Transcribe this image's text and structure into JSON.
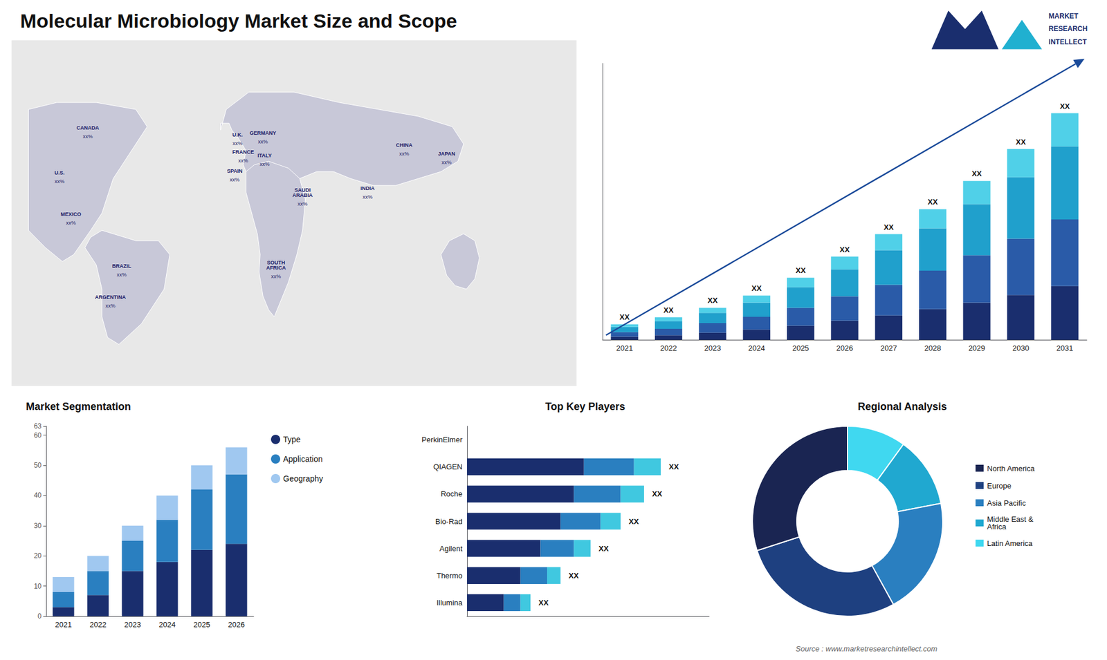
{
  "title": "Molecular Microbiology Market Size and Scope",
  "annotations": [
    "Source : www.marketresearchintellect.com",
    "MARKET",
    "RESEARCH",
    "INTELLECT"
  ],
  "chart_data": [
    {
      "type": "map",
      "categories": [
        "CANADA",
        "U.S.",
        "MEXICO",
        "BRAZIL",
        "ARGENTINA",
        "U.K.",
        "FRANCE",
        "SPAIN",
        "GERMANY",
        "ITALY",
        "SAUDI\nARABIA",
        "SOUTH\nAFRICA",
        "CHINA",
        "INDIA",
        "JAPAN"
      ],
      "annotations": [
        "xx%",
        "xx%",
        "xx%",
        "xx%",
        "xx%",
        "xx%",
        "xx%",
        "xx%",
        "xx%",
        "xx%",
        "xx%",
        "xx%",
        "xx%",
        "xx%",
        "xx%"
      ]
    },
    {
      "type": "bar",
      "stacked": true,
      "categories": [
        "2021",
        "2022",
        "2023",
        "2024",
        "2025",
        "2026",
        "2027",
        "2028",
        "2029",
        "2030",
        "2031"
      ],
      "series": [
        {
          "color": "#1a2e6e",
          "values": [
            2.5,
            3.5,
            5.5,
            8,
            11,
            15,
            19,
            24,
            29,
            35,
            42
          ]
        },
        {
          "color": "#2a5ba8",
          "values": [
            3.5,
            5,
            7.5,
            10,
            14,
            19,
            24,
            30,
            37,
            44,
            52
          ]
        },
        {
          "color": "#20a0cc",
          "values": [
            4,
            6,
            8,
            11,
            16,
            21,
            27,
            33,
            40,
            48,
            57
          ]
        },
        {
          "color": "#50d0e8",
          "values": [
            2,
            3,
            4,
            5.5,
            7.5,
            10,
            12.5,
            15,
            18,
            22,
            26
          ]
        }
      ],
      "annotations": [
        "XX",
        "XX",
        "XX",
        "XX",
        "XX",
        "XX",
        "XX",
        "XX",
        "XX",
        "XX",
        "XX"
      ],
      "ylim": [
        0,
        215.94
      ],
      "tick_labels": "x",
      "grid": false
    },
    {
      "type": "bar",
      "title": "Market Segmentation",
      "stacked": true,
      "categories": [
        "2021",
        "2022",
        "2023",
        "2024",
        "2025",
        "2026"
      ],
      "series": [
        {
          "name": "Type",
          "color": "#1a2e6e",
          "values": [
            3,
            7,
            15,
            18,
            22,
            24
          ]
        },
        {
          "name": "Application",
          "color": "#2a7fc0",
          "values": [
            5,
            8,
            10,
            14,
            20,
            23
          ]
        },
        {
          "name": "Geography",
          "color": "#a0c8f0",
          "values": [
            5,
            5,
            5,
            8,
            8,
            9
          ]
        }
      ],
      "ylim": [
        0,
        63
      ],
      "yticks": [
        0,
        10,
        20,
        30,
        40,
        50,
        60
      ],
      "legend": "right",
      "grid": false
    },
    {
      "type": "bar",
      "title": "Top Key Players",
      "orientation": "horizontal",
      "stacked": true,
      "categories": [
        "PerkinElmer",
        "QIAGEN",
        "Roche",
        "Bio-Rad",
        "Agilent",
        "Thermo",
        "Illumina"
      ],
      "series": [
        {
          "color": "#1a2e6e",
          "values": [
            0,
            35,
            32,
            28,
            22,
            16,
            11
          ]
        },
        {
          "color": "#2a7fc0",
          "values": [
            0,
            15,
            14,
            12,
            10,
            8,
            5
          ]
        },
        {
          "color": "#40c8e0",
          "values": [
            0,
            8,
            7,
            6,
            5,
            4,
            3
          ]
        }
      ],
      "annotations": [
        null,
        "XX",
        "XX",
        "XX",
        "XX",
        "XX",
        "XX"
      ],
      "xlim": [
        0,
        72.5
      ],
      "tick_labels": "y",
      "grid": false
    },
    {
      "type": "pie",
      "title": "Regional Analysis",
      "categories": [
        "Latin America",
        "Middle East &\nAfrica",
        "Asia Pacific",
        "Europe",
        "North America"
      ],
      "values": [
        10,
        12,
        20,
        28,
        30
      ],
      "colors": [
        "#40d8f0",
        "#20a8d0",
        "#2a7fc0",
        "#1e4080",
        "#1a2552"
      ],
      "legend": "right"
    }
  ]
}
